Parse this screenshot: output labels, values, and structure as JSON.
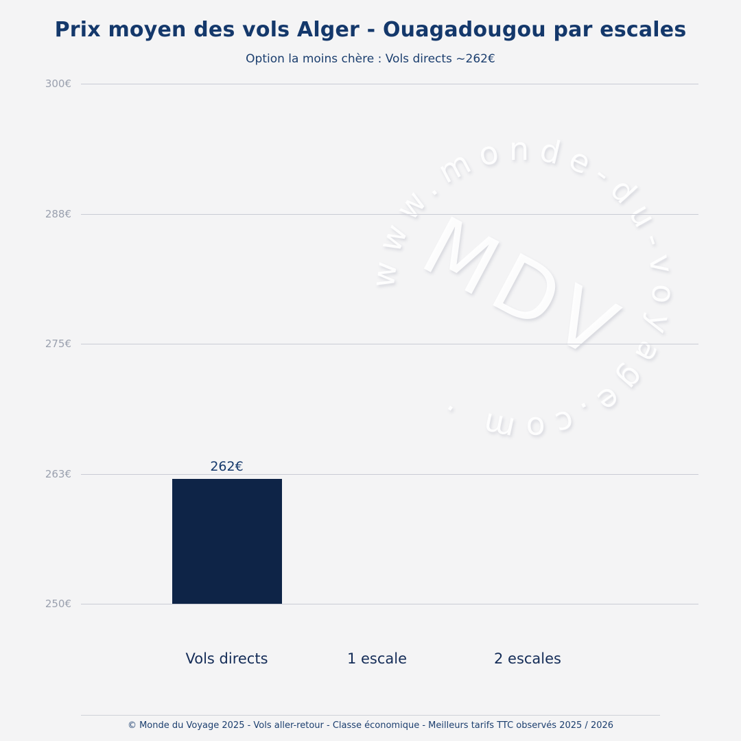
{
  "page": {
    "background_color": "#f4f4f5"
  },
  "chart_data": {
    "type": "bar",
    "title": "Prix moyen des vols Alger - Ouagadougou par escales",
    "subtitle": "Option la moins chère : Vols directs ~262€",
    "categories": [
      "Vols directs",
      "1 escale",
      "2 escales"
    ],
    "values": [
      262,
      null,
      null
    ],
    "value_labels": [
      "262€",
      "",
      ""
    ],
    "unit": "€",
    "ylim": [
      250,
      300
    ],
    "yticks": [
      {
        "value": 300,
        "label": "300€"
      },
      {
        "value": 287.5,
        "label": "288€"
      },
      {
        "value": 275,
        "label": "275€"
      },
      {
        "value": 262.5,
        "label": "263€"
      },
      {
        "value": 250,
        "label": "250€"
      }
    ],
    "grid": true,
    "legend": false,
    "xlabel": "",
    "ylabel": "",
    "bar_color": "#0e2447",
    "accent_color": "#14386b",
    "tick_color": "#9aa0ae"
  },
  "watermark": {
    "circle_text": "www.monde-du-voyage.com ·",
    "center_text": "MDV"
  },
  "footer": {
    "text": "© Monde du Voyage 2025 - Vols aller-retour - Classe économique - Meilleurs tarifs TTC observés 2025 / 2026"
  }
}
